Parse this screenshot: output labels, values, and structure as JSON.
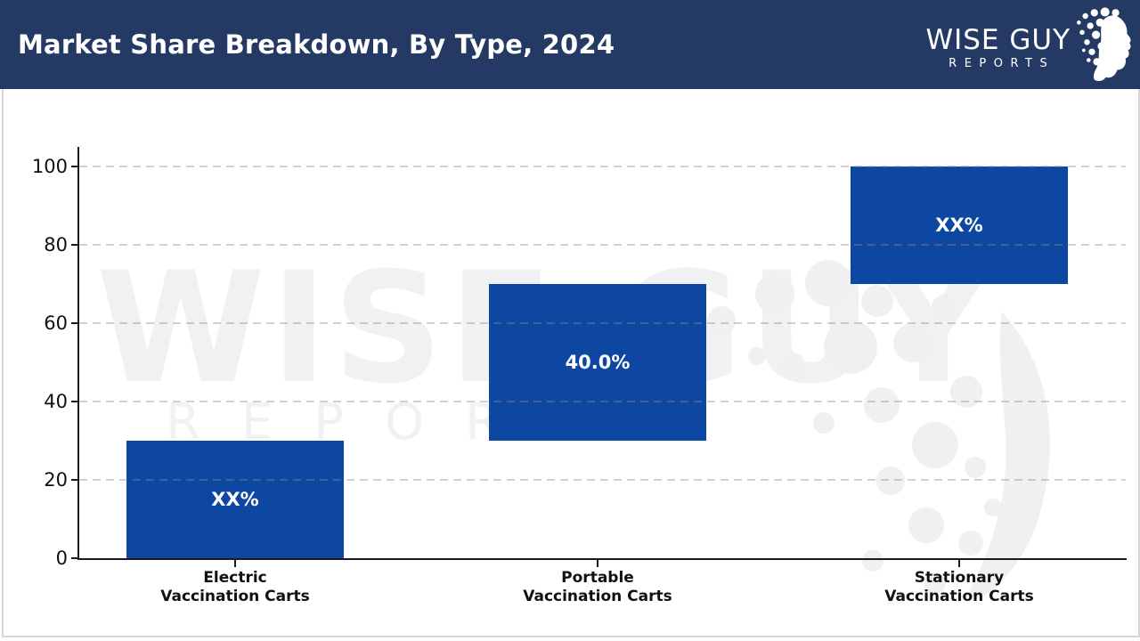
{
  "header": {
    "title": "Market Share Breakdown, By Type, 2024",
    "bg_color": "#243a64",
    "logo": {
      "line1": "WISE GUY",
      "line2": "REPORTS"
    }
  },
  "watermark": {
    "line1": "WISE GUY",
    "line2": "REPORTS"
  },
  "chart_data": {
    "type": "bar",
    "subtype": "waterfall",
    "title": "Market Share Breakdown, By Type, 2024",
    "categories": [
      [
        "Electric",
        "Vaccination Carts"
      ],
      [
        "Portable",
        "Vaccination Carts"
      ],
      [
        "Stationary",
        "Vaccination Carts"
      ]
    ],
    "segments": [
      {
        "base": 0,
        "top": 30,
        "label": "XX%"
      },
      {
        "base": 30,
        "top": 70,
        "label": "40.0%"
      },
      {
        "base": 70,
        "top": 100,
        "label": "XX%"
      }
    ],
    "values": [
      30,
      40,
      30
    ],
    "yticks": [
      0,
      20,
      40,
      60,
      80,
      100
    ],
    "ylim": [
      0,
      105
    ],
    "xlabel": "",
    "ylabel": "",
    "grid": "horizontal-dashed",
    "legend": "none",
    "bar_color": "#0d47a1",
    "bar_label_color": "#ffffff",
    "axis_color": "#1a1a1a"
  }
}
